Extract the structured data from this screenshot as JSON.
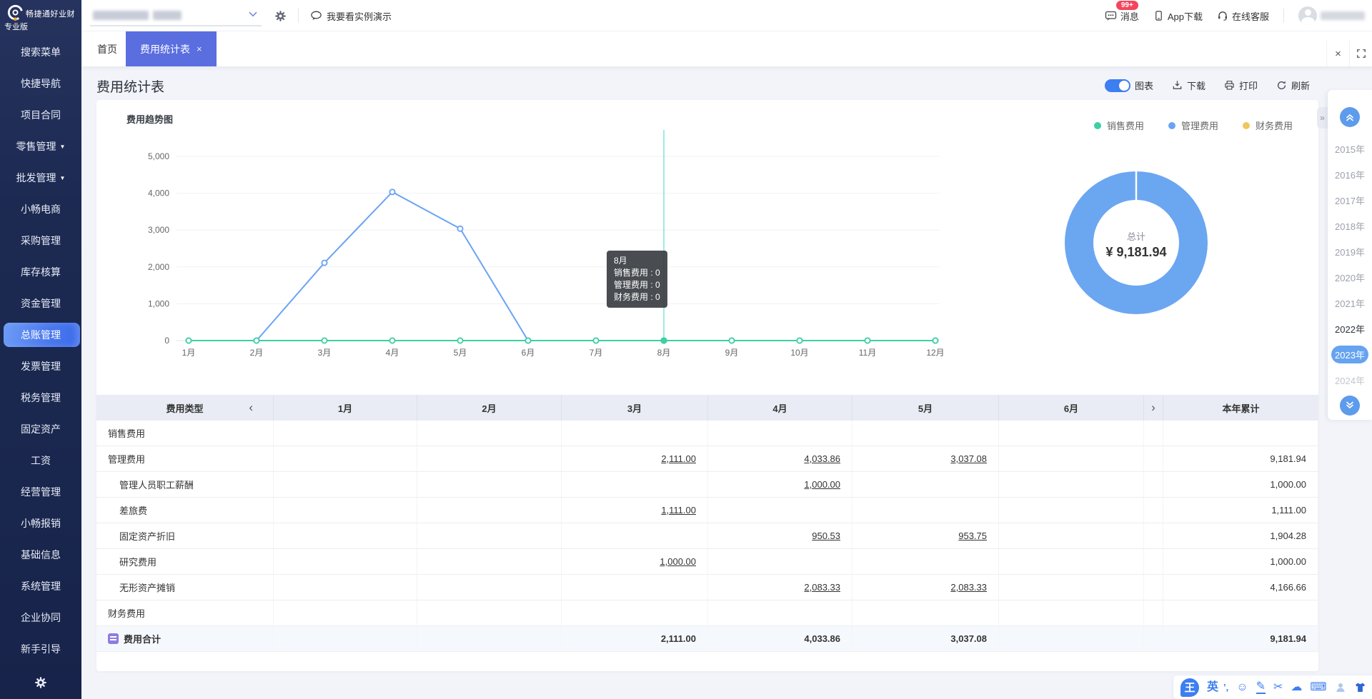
{
  "topbar": {
    "brand_line1": "畅捷通好业财",
    "brand_line2": "专业版",
    "demo": "我要看实例演示",
    "messages": "消息",
    "badge": "99+",
    "app": "App下载",
    "service": "在线客服"
  },
  "tabs": {
    "home": "首页",
    "current": "费用统计表"
  },
  "page": {
    "title": "费用统计表"
  },
  "toolbar": {
    "chart": "图表",
    "download": "下载",
    "print": "打印",
    "refresh": "刷新"
  },
  "sidebar": {
    "items": [
      {
        "label": "搜索菜单"
      },
      {
        "label": "快捷导航"
      },
      {
        "label": "项目合同"
      },
      {
        "label": "零售管理",
        "arrow": true
      },
      {
        "label": "批发管理",
        "arrow": true
      },
      {
        "label": "小畅电商"
      },
      {
        "label": "采购管理"
      },
      {
        "label": "库存核算"
      },
      {
        "label": "资金管理"
      },
      {
        "label": "总账管理",
        "active": true
      },
      {
        "label": "发票管理"
      },
      {
        "label": "税务管理"
      },
      {
        "label": "固定资产"
      },
      {
        "label": "工资"
      },
      {
        "label": "经营管理"
      },
      {
        "label": "小畅报销"
      },
      {
        "label": "基础信息"
      },
      {
        "label": "系统管理"
      },
      {
        "label": "企业协同"
      },
      {
        "label": "新手引导"
      }
    ]
  },
  "chart_data": [
    {
      "type": "line",
      "title": "费用趋势图",
      "categories": [
        "1月",
        "2月",
        "3月",
        "4月",
        "5月",
        "6月",
        "7月",
        "8月",
        "9月",
        "10月",
        "11月",
        "12月"
      ],
      "series": [
        {
          "name": "销售费用",
          "color": "#3DD0A4",
          "values": [
            0,
            0,
            0,
            0,
            0,
            0,
            0,
            0,
            0,
            0,
            0,
            0
          ]
        },
        {
          "name": "管理费用",
          "color": "#6AA3F5",
          "values": [
            0,
            0,
            2111.0,
            4033.86,
            3037.08,
            0,
            0,
            0,
            0,
            0,
            0,
            0
          ]
        },
        {
          "name": "财务费用",
          "color": "#EFC75E",
          "values": [
            0,
            0,
            0,
            0,
            0,
            0,
            0,
            0,
            0,
            0,
            0,
            0
          ]
        }
      ],
      "ylim": [
        0,
        5000
      ],
      "ytick_step": 1000,
      "grid": true,
      "legend_position": "top-right",
      "highlight_index": 7
    },
    {
      "type": "donut",
      "label": "总计",
      "value": "¥ 9,181.94",
      "total": 9181.94,
      "color": "#6BA6F1",
      "slices": [
        {
          "name": "销售费用",
          "value": 0
        },
        {
          "name": "管理费用",
          "value": 9181.94
        },
        {
          "name": "财务费用",
          "value": 0
        }
      ]
    }
  ],
  "tooltip": {
    "title": "8月",
    "lines": [
      "销售费用 : 0",
      "管理费用 : 0",
      "财务费用 : 0"
    ]
  },
  "trend": {
    "title": "费用趋势图"
  },
  "table": {
    "col_headers": [
      "费用类型",
      "1月",
      "2月",
      "3月",
      "4月",
      "5月",
      "6月",
      "本年累计"
    ],
    "rows": [
      {
        "label": "销售费用",
        "indent": 0,
        "months": [
          "",
          "",
          "",
          "",
          "",
          ""
        ],
        "total": ""
      },
      {
        "label": "管理费用",
        "indent": 0,
        "months": [
          "",
          "",
          "2,111.00",
          "4,033.86",
          "3,037.08",
          ""
        ],
        "total": "9,181.94"
      },
      {
        "label": "管理人员职工薪酬",
        "indent": 1,
        "months": [
          "",
          "",
          "",
          "1,000.00",
          "",
          ""
        ],
        "total": "1,000.00"
      },
      {
        "label": "差旅费",
        "indent": 1,
        "months": [
          "",
          "",
          "1,111.00",
          "",
          "",
          ""
        ],
        "total": "1,111.00"
      },
      {
        "label": "固定资产折旧",
        "indent": 1,
        "months": [
          "",
          "",
          "",
          "950.53",
          "953.75",
          ""
        ],
        "total": "1,904.28"
      },
      {
        "label": "研究费用",
        "indent": 1,
        "months": [
          "",
          "",
          "1,000.00",
          "",
          "",
          ""
        ],
        "total": "1,000.00"
      },
      {
        "label": "无形资产摊销",
        "indent": 1,
        "months": [
          "",
          "",
          "",
          "2,083.33",
          "2,083.33",
          ""
        ],
        "total": "4,166.66"
      },
      {
        "label": "财务费用",
        "indent": 0,
        "months": [
          "",
          "",
          "",
          "",
          "",
          ""
        ],
        "total": ""
      }
    ],
    "total_row": {
      "label": "费用合计",
      "months": [
        "",
        "",
        "2,111.00",
        "4,033.86",
        "3,037.08",
        ""
      ],
      "total": "9,181.94"
    }
  },
  "years": {
    "items": [
      "2015年",
      "2016年",
      "2017年",
      "2018年",
      "2019年",
      "2020年",
      "2021年",
      "2022年",
      "2023年",
      "2024年"
    ],
    "selected": "2023年",
    "emphasized": "2022年"
  },
  "ime": {
    "avatar": "王",
    "lang": "英",
    "punct": "’,"
  },
  "icons": {
    "close": "×",
    "tab_close": "×",
    "prev": "‹",
    "next": "›",
    "collapse": "»",
    "dropdown_arrow": "▼",
    "smiley": "☺",
    "pencil": "✎",
    "scissors": "✂",
    "cloud": "☁",
    "keyboard": "⌨"
  },
  "colors": {
    "accent_blue": "#3D7EF0",
    "tab_active": "#5A6EE0",
    "donut": "#6BA6F1",
    "series_sales": "#3DD0A4",
    "series_admin": "#6AA3F5",
    "series_finance": "#EFC75E",
    "badge_red": "#F5455C",
    "year_selected": "#66A3F0"
  }
}
